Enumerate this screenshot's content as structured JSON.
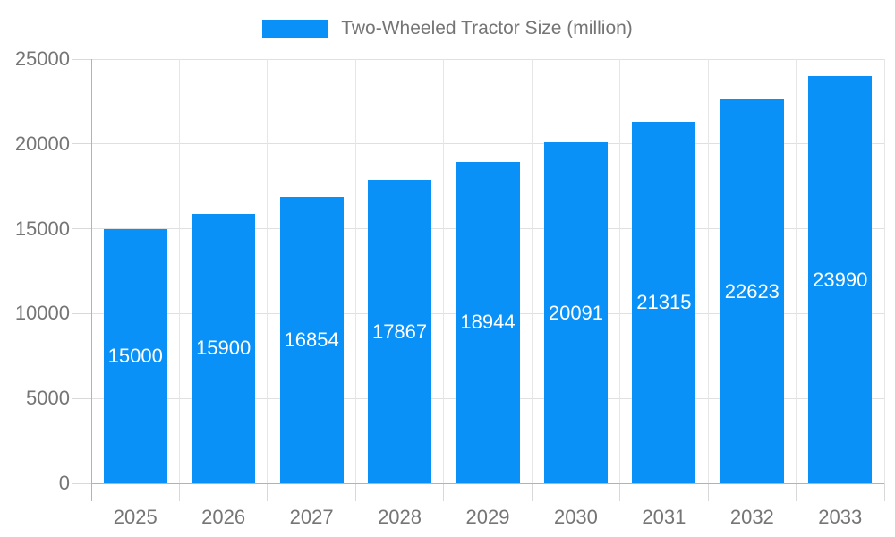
{
  "chart_data": {
    "type": "bar",
    "title": "",
    "categories": [
      "2025",
      "2026",
      "2027",
      "2028",
      "2029",
      "2030",
      "2031",
      "2032",
      "2033"
    ],
    "series": [
      {
        "name": "Two-Wheeled Tractor Size (million)",
        "values": [
          15000,
          15900,
          16854,
          17867,
          18944,
          20091,
          21315,
          22623,
          23990
        ]
      }
    ],
    "xlabel": "",
    "ylabel": "",
    "ylim": [
      0,
      25000
    ],
    "ytick_step": 5000,
    "ytick_labels": [
      "0",
      "5000",
      "10000",
      "15000",
      "20000",
      "25000"
    ],
    "grid": true,
    "legend_position": "top",
    "value_label_position": "inside-center",
    "colors": {
      "bar": "#0991F7",
      "axis_text": "#757575",
      "legend_text": "#757575",
      "value_label_text": "#ffffff",
      "gridline": "#e0e0e0",
      "axis_line": "#b3b3b3",
      "background": "#ffffff"
    }
  }
}
